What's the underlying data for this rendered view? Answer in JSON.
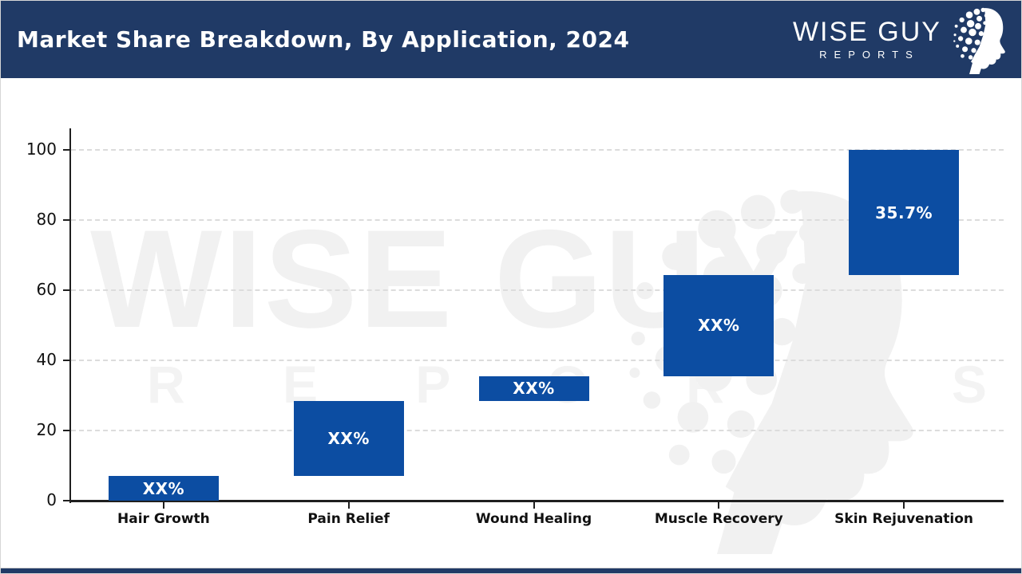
{
  "header": {
    "title": "Market Share Breakdown, By Application, 2024",
    "bg_color": "#203A66",
    "logo": {
      "line1": "WISE GUY",
      "line2": "REPORTS"
    }
  },
  "chart_data": {
    "type": "bar",
    "subtype": "waterfall",
    "title": "Market Share Breakdown, By Application, 2024",
    "categories": [
      "Hair Growth",
      "Pain Relief",
      "Wound Healing",
      "Muscle Recovery",
      "Skin Rejuvenation"
    ],
    "segments": [
      {
        "category": "Hair Growth",
        "start": 0,
        "end": 7,
        "label": "XX%"
      },
      {
        "category": "Pain Relief",
        "start": 7,
        "end": 28.5,
        "label": "XX%"
      },
      {
        "category": "Wound Healing",
        "start": 28.5,
        "end": 35.5,
        "label": "XX%"
      },
      {
        "category": "Muscle Recovery",
        "start": 35.5,
        "end": 64.3,
        "label": "XX%"
      },
      {
        "category": "Skin Rejuvenation",
        "start": 64.3,
        "end": 100,
        "label": "35.7%"
      }
    ],
    "xlabel": "",
    "ylabel": "",
    "ylim": [
      0,
      100
    ],
    "yticks": [
      0,
      20,
      40,
      60,
      80,
      100
    ],
    "grid": "horizontal dashed",
    "legend": "none",
    "bar_color": "#0C4DA2",
    "bar_label_color": "#ffffff",
    "axis_color": "#1f1f1f",
    "grid_color": "#dcdcdc",
    "watermark": {
      "line1": "WISE GUY",
      "line2": "R E P O R T S"
    }
  },
  "footer": {
    "bar_color": "#203A66"
  }
}
